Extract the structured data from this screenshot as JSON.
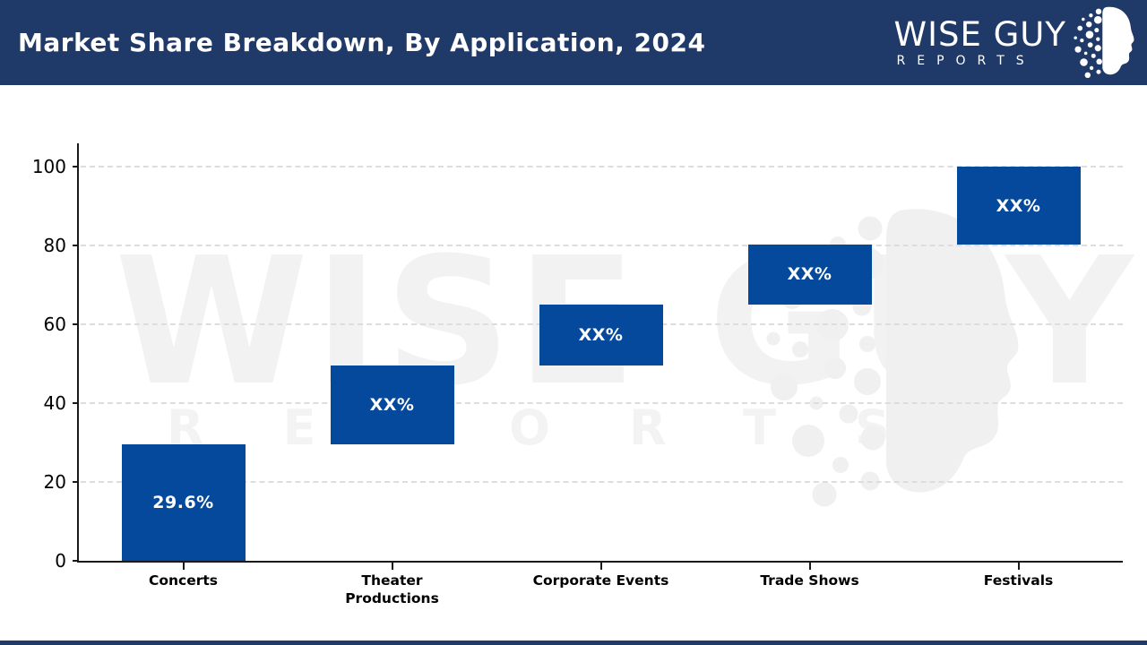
{
  "header": {
    "title": "Market Share Breakdown, By Application, 2024",
    "bg_color": "#1f3a68",
    "logo": {
      "line1": "WISE GUY",
      "line2": "REPORTS"
    }
  },
  "watermark": {
    "line1": "WISE GUY",
    "line2": "REPORTS"
  },
  "chart_data": {
    "type": "bar",
    "subtype": "waterfall",
    "title": "Market Share Breakdown, By Application, 2024",
    "xlabel": "",
    "ylabel": "",
    "categories": [
      "Concerts",
      "Theater Productions",
      "Corporate Events",
      "Trade Shows",
      "Festivals"
    ],
    "category_label_lines": [
      [
        "Concerts"
      ],
      [
        "Theater",
        "Productions"
      ],
      [
        "Corporate Events"
      ],
      [
        "Trade Shows"
      ],
      [
        "Festivals"
      ]
    ],
    "segments": [
      {
        "category": "Concerts",
        "start": 0,
        "end": 29.6,
        "label": "29.6%"
      },
      {
        "category": "Theater Productions",
        "start": 29.6,
        "end": 49.5,
        "label": "XX%"
      },
      {
        "category": "Corporate Events",
        "start": 49.5,
        "end": 65.1,
        "label": "XX%"
      },
      {
        "category": "Trade Shows",
        "start": 65.1,
        "end": 80.2,
        "label": "XX%"
      },
      {
        "category": "Festivals",
        "start": 80.2,
        "end": 100,
        "label": "XX%"
      }
    ],
    "yticks": [
      0,
      20,
      40,
      60,
      80,
      100
    ],
    "ylim": [
      0,
      105
    ],
    "grid": "horizontal-dashed",
    "legend": "none",
    "bar_color": "#05499d",
    "label_color": "#ffffff"
  }
}
